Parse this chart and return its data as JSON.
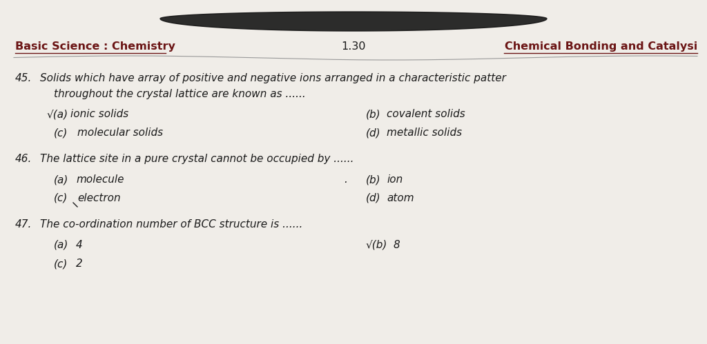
{
  "bg_color": "#f0ede8",
  "header_left": "Basic Science : Chemistry",
  "header_center": "1.30",
  "header_right": "Chemical Bonding and Catalysi",
  "header_color": "#6b1515",
  "text_color": "#1a1a1a",
  "font_size_header": 11.5,
  "font_size_qtext": 11,
  "font_size_options": 11,
  "line_color": "#888888",
  "shadow_color": "#111111",
  "q45_line1": "Solids which have array of positive and negative ions arranged in a characteristic patter",
  "q45_line2": "throughout the crystal lattice are known as ......",
  "q45_oa_label": "√(a)",
  "q45_oa_text": "ionic solids",
  "q45_ob_label": "(b)",
  "q45_ob_text": "covalent solids",
  "q45_oc_label": "(c)",
  "q45_oc_text": "molecular solids",
  "q45_od_label": "(d)",
  "q45_od_text": "metallic solids",
  "q46_text": "The lattice site in a pure crystal cannot be occupied by ......",
  "q46_oa_label": "(a)",
  "q46_oa_text": "molecule",
  "q46_ob_label": "(b)",
  "q46_ob_text": "ion",
  "q46_oc_label": "(c)",
  "q46_oc_text": "electron",
  "q46_od_label": "(d)",
  "q46_od_text": "atom",
  "q47_text": "The co-ordination number of BCC structure is ......",
  "q47_oa_label": "(a)",
  "q47_oa_text": "4",
  "q47_ob_label": "√(b)",
  "q47_ob_text": "8",
  "q47_oc_label": "(c)",
  "q47_oc_text": "2"
}
